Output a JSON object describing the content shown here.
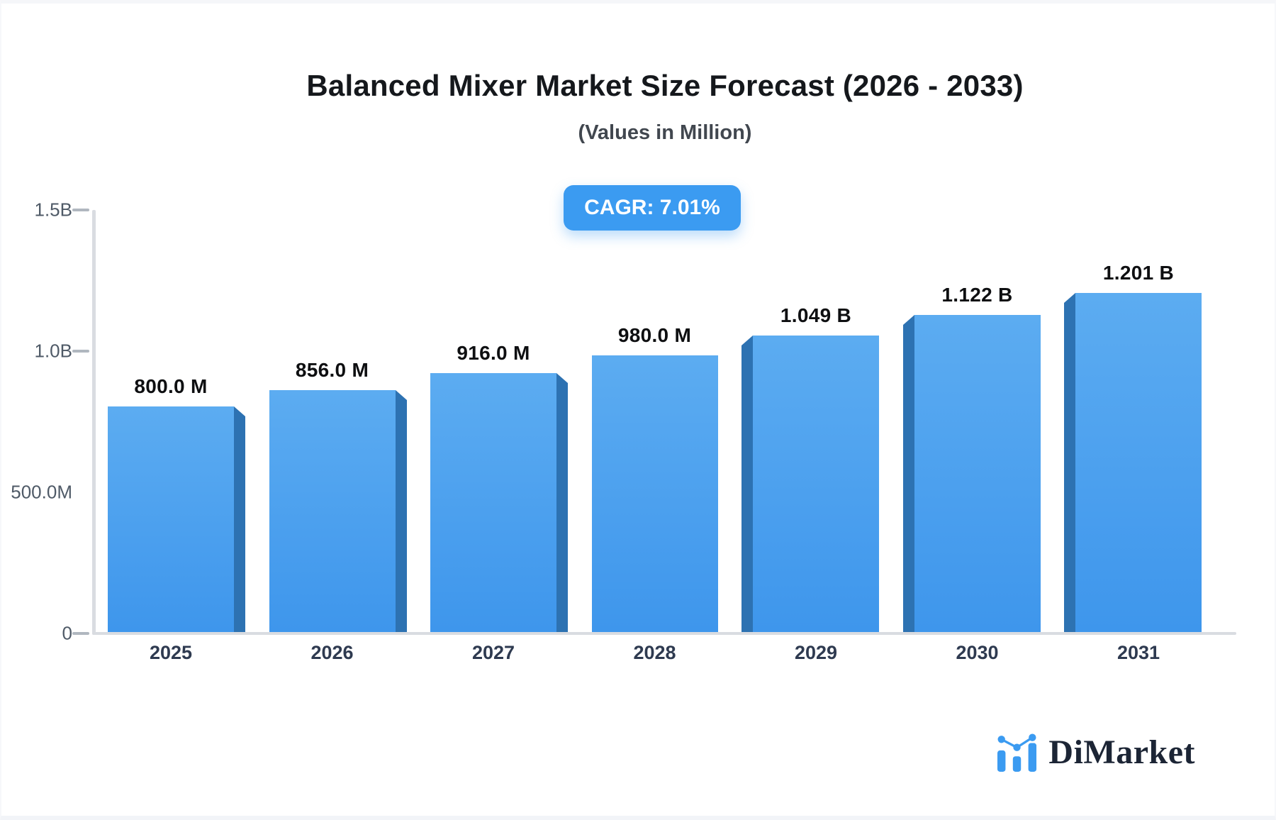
{
  "page": {
    "background": "#ffffff"
  },
  "chart_data": {
    "type": "bar",
    "title": "Balanced Mixer Market Size Forecast (2026 - 2033)",
    "subtitle": "(Values in Million)",
    "badge_label": "CAGR: 7.01%",
    "categories": [
      "2025",
      "2026",
      "2027",
      "2028",
      "2029",
      "2030",
      "2031"
    ],
    "values_billions": [
      0.8,
      0.856,
      0.916,
      0.98,
      1.049,
      1.122,
      1.201
    ],
    "value_labels": [
      "800.0 M",
      "856.0 M",
      "916.0 M",
      "980.0 M",
      "1.049 B",
      "1.122 B",
      "1.201 B"
    ],
    "y_axis": {
      "ylim": [
        0,
        1.5
      ],
      "ticks": [
        {
          "label": "1.5B",
          "value": 1.5,
          "dash": true
        },
        {
          "label": "1.0B",
          "value": 1.0,
          "dash": true
        },
        {
          "label": "500.0M",
          "value": 0.5,
          "dash": false
        },
        {
          "label": "0",
          "value": 0.0,
          "dash": true
        }
      ]
    },
    "legend": null,
    "grid": "off",
    "colors": {
      "accent": "#3b9bf1",
      "bar_face_top": "#5cacf1",
      "bar_face_bottom": "#3e96ec",
      "bar_side": "#2d72b2",
      "axis_line": "#d9dce1",
      "tick_dash": "#b0b7bf",
      "y_label": "#4f5a67",
      "x_label": "#2e3a50",
      "value_label": "#0e0f11",
      "title": "#15181c",
      "subtitle": "#41474f"
    }
  },
  "branding": {
    "logo_text": "DiMarket",
    "logo_icon": "mini-bar-chart-icon",
    "logo_icon_color": "#3b9bf1",
    "logo_text_color": "#1c2535"
  }
}
